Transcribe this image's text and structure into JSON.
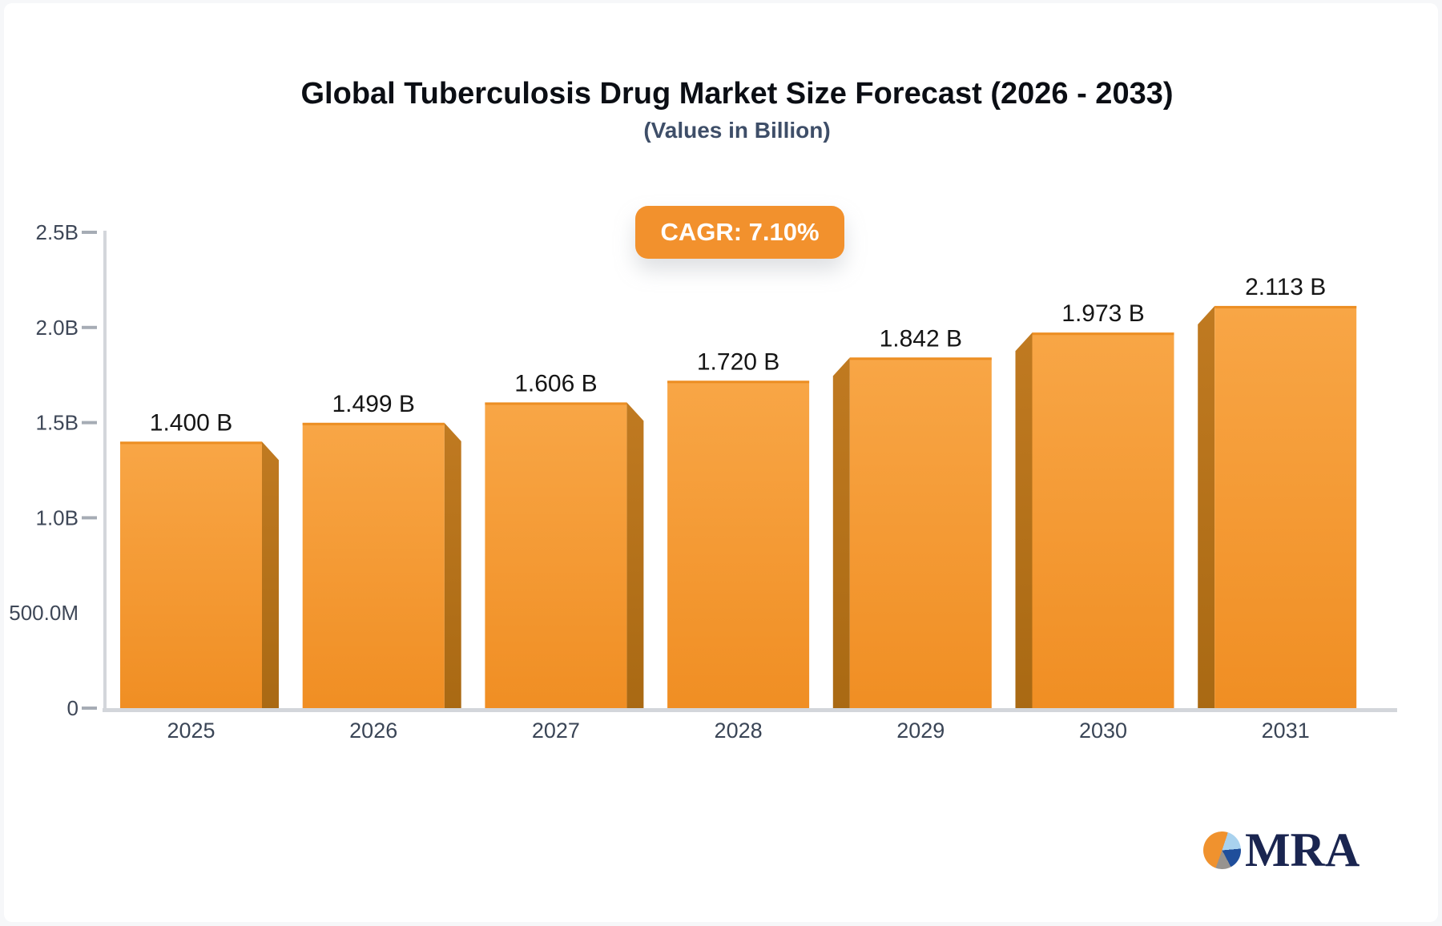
{
  "title": "Global Tuberculosis Drug Market Size Forecast (2026 - 2033)",
  "subtitle": "(Values in Billion)",
  "badge": {
    "label": "CAGR: 7.10%",
    "bg": "#F2912D",
    "text_color": "#FFFFFF"
  },
  "logo": {
    "text": "MRA",
    "pie_slice_colors": [
      "#F0922E",
      "#A9D2EE",
      "#1F4E9B",
      "#97938F"
    ],
    "text_color": "#1A2550"
  },
  "chart_data": {
    "type": "bar",
    "title": "Global Tuberculosis Drug Market Size Forecast (2026 - 2033)",
    "subtitle": "(Values in Billion)",
    "categories": [
      "2025",
      "2026",
      "2027",
      "2028",
      "2029",
      "2030",
      "2031"
    ],
    "values": [
      1.4,
      1.499,
      1.606,
      1.72,
      1.842,
      1.973,
      2.113
    ],
    "value_labels": [
      "1.400 B",
      "1.499 B",
      "1.606 B",
      "1.720 B",
      "1.842 B",
      "1.973 B",
      "2.113 B"
    ],
    "xlabel": "",
    "ylabel": "",
    "ylim": [
      0,
      2.5
    ],
    "grid": false,
    "legend": "none",
    "y_axis": {
      "max": 2.5,
      "ticks": [
        {
          "label": "2.5B",
          "value": 2.5,
          "dash": true
        },
        {
          "label": "2.0B",
          "value": 2.0,
          "dash": true
        },
        {
          "label": "1.5B",
          "value": 1.5,
          "dash": true
        },
        {
          "label": "1.0B",
          "value": 1.0,
          "dash": true
        },
        {
          "label": "500.0M",
          "value": 0.5,
          "dash": false
        },
        {
          "label": "0",
          "value": 0.0,
          "dash": true
        }
      ]
    },
    "colors": {
      "bar_face_top": "#F8A646",
      "bar_face_bottom": "#F08E23",
      "bar_top_edge": "#EA8A1D",
      "bar_side_top": "#C07A21",
      "bar_side_bottom": "#A96913",
      "axis_line": "#D3D6DB",
      "tick_dash": "#A6ACB5"
    }
  }
}
